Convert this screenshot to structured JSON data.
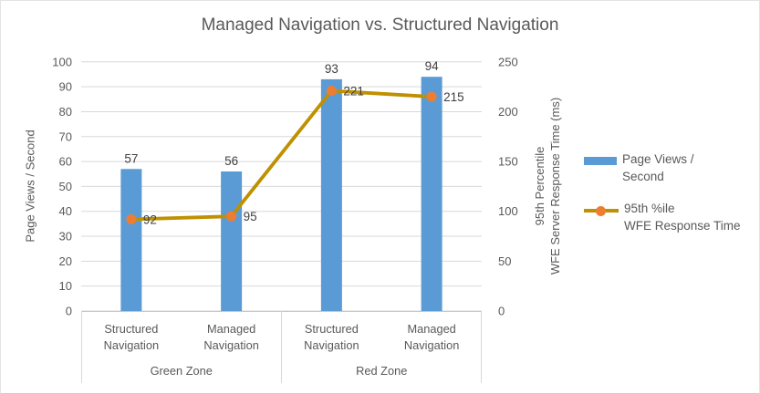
{
  "colors": {
    "bar": "#5B9BD5",
    "line": "#BF9000",
    "marker": "#ED7D31",
    "gridline": "#D9D9D9",
    "axis_line": "#C6C6C6",
    "text": "#595959",
    "data_label": "#404040"
  },
  "legend": {
    "items": [
      {
        "line1": "Page Views /",
        "line2": "Second"
      },
      {
        "line1": "95th %ile",
        "line2": "WFE Response Time"
      }
    ]
  },
  "chart_data": {
    "type": "combo-bar-line",
    "title": "Managed Navigation vs. Structured Navigation",
    "categories": [
      "Structured Navigation",
      "Managed Navigation",
      "Structured Navigation",
      "Managed Navigation"
    ],
    "category_groups": [
      {
        "label": "Green Zone",
        "span": 2
      },
      {
        "label": "Red Zone",
        "span": 2
      }
    ],
    "series": [
      {
        "name": "Page Views / Second",
        "type": "bar",
        "axis": "left",
        "values": [
          57,
          56,
          93,
          94
        ],
        "color": "#5B9BD5"
      },
      {
        "name": "95th %ile WFE Response Time",
        "type": "line",
        "axis": "right",
        "values": [
          92,
          95,
          221,
          215
        ],
        "color": "#BF9000",
        "marker_color": "#ED7D31"
      }
    ],
    "left_axis": {
      "title": "Page Views / Second",
      "min": 0,
      "max": 100,
      "ticks": [
        0,
        10,
        20,
        30,
        40,
        50,
        60,
        70,
        80,
        90,
        100
      ]
    },
    "right_axis": {
      "title_lines": [
        "95th Percentile",
        "WFE Server Response Time (ms)"
      ],
      "min": 0,
      "max": 250,
      "ticks": [
        0,
        50,
        100,
        150,
        200,
        250
      ]
    },
    "grid": true,
    "legend_position": "right",
    "data_labels": true
  }
}
